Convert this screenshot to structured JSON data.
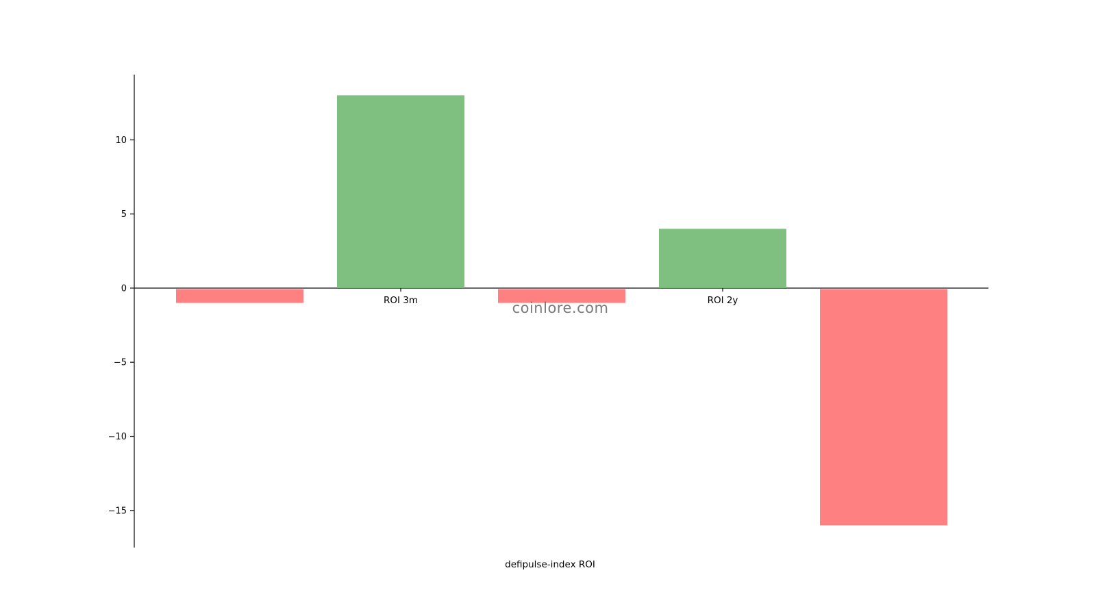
{
  "page": {
    "background_color": "#ffffff"
  },
  "chart_data": {
    "type": "bar",
    "categories": [
      "",
      "ROI 3m",
      "",
      "ROI 2y",
      ""
    ],
    "values": [
      -1,
      13,
      -1,
      4,
      -16
    ],
    "title": "",
    "xlabel": "defipulse-index ROI",
    "ylabel": "",
    "y_ticks": [
      10,
      5,
      0,
      -5,
      -10,
      -15
    ],
    "ylim": [
      -17.5,
      14.4
    ],
    "grid": false,
    "legend_position": "none",
    "watermark": "coinlore.com",
    "colors": {
      "positive_bar": "#7fbf7f",
      "negative_bar": "#ff8080",
      "axis": "#1a1a1a",
      "tick_label": "#000000",
      "watermark": "#7b7b7b"
    }
  }
}
